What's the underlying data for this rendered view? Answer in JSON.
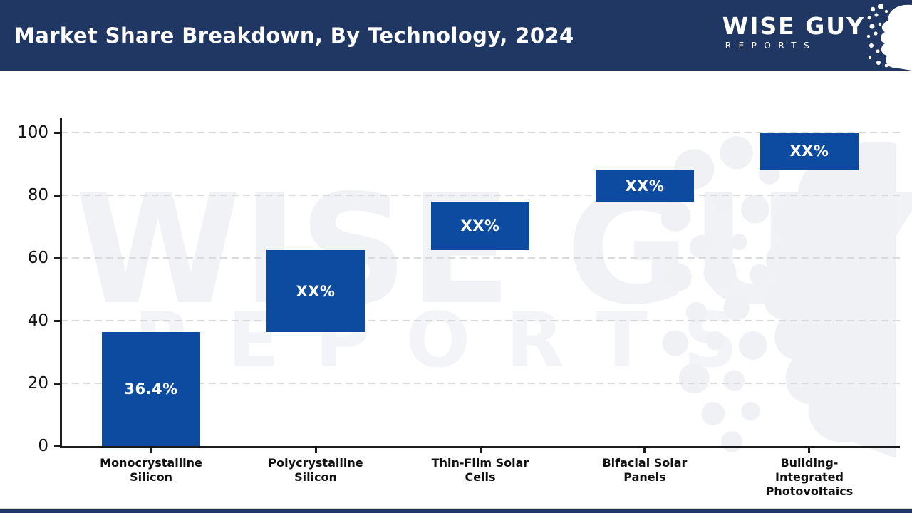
{
  "header": {
    "title": "Market Share Breakdown, By Technology, 2024",
    "logo": {
      "line1": "WISE GUY",
      "line2": "REPORTS"
    }
  },
  "watermark": {
    "line1": "WISE GUY",
    "line2": "REPORTS"
  },
  "chart_data": {
    "type": "bar",
    "variant": "waterfall",
    "title": "Market Share Breakdown, By Technology, 2024",
    "xlabel": "",
    "ylabel": "",
    "categories": [
      "Monocrystalline\nSilicon",
      "Polycrystalline\nSilicon",
      "Thin-Film Solar\nCells",
      "Bifacial Solar\nPanels",
      "Building-\nIntegrated\nPhotovoltaics"
    ],
    "bars": [
      {
        "category": "Monocrystalline Silicon",
        "start": 0,
        "end": 36.4,
        "label": "36.4%"
      },
      {
        "category": "Polycrystalline Silicon",
        "start": 36.4,
        "end": 62.4,
        "label": "XX%"
      },
      {
        "category": "Thin-Film Solar Cells",
        "start": 62.4,
        "end": 78.0,
        "label": "XX%"
      },
      {
        "category": "Bifacial Solar Panels",
        "start": 78.0,
        "end": 88.0,
        "label": "XX%"
      },
      {
        "category": "Building-Integrated Photovoltaics",
        "start": 88.0,
        "end": 100.0,
        "label": "XX%"
      }
    ],
    "yticks": [
      0,
      20,
      40,
      60,
      80,
      100
    ],
    "ylim": [
      0,
      104.5
    ],
    "grid": "horizontal-dashed",
    "legend": "none"
  },
  "colors": {
    "header_bg": "#203763",
    "bar": "#0D4BA0",
    "grid": "#D9D9D9",
    "axis": "#1A1A1A",
    "text": "#111111",
    "label_on_bar": "#FFFFFF",
    "watermark": "#F1F2F5"
  }
}
